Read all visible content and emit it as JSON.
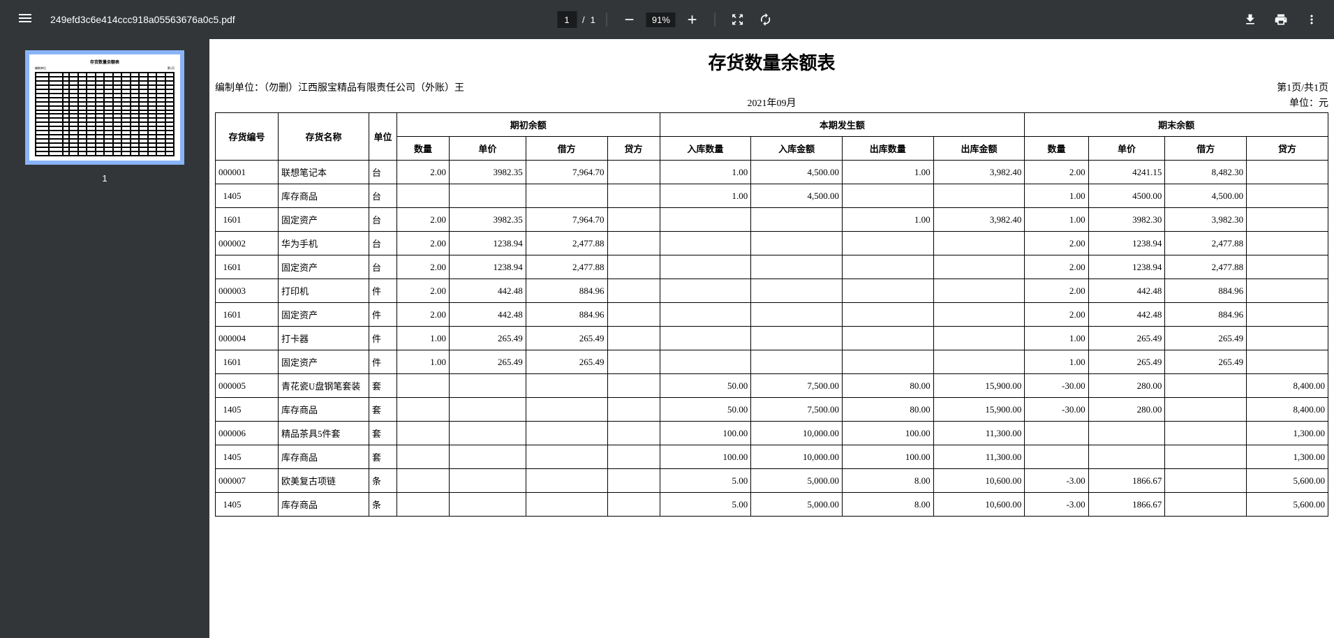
{
  "toolbar": {
    "filename": "249efd3c6e414ccc918a05563676a0c5.pdf",
    "currentPage": "1",
    "totalPages": "1",
    "pageSeparator": "/",
    "zoomLevel": "91%"
  },
  "sidebar": {
    "thumbLabel": "1"
  },
  "document": {
    "title": "存货数量余额表",
    "companyLabel": "编制单位：（勿删）江西服宝精品有限责任公司（外账）王",
    "pageInfo": "第1页/共1页",
    "dateText": "2021年09月",
    "unitLabel": "单位：元",
    "headers": {
      "col1": "存货编号",
      "col2": "存货名称",
      "col3": "单位",
      "group1": "期初余额",
      "group2": "本期发生额",
      "group3": "期末余额",
      "g1c1": "数量",
      "g1c2": "单价",
      "g1c3": "借方",
      "g1c4": "贷方",
      "g2c1": "入库数量",
      "g2c2": "入库金额",
      "g2c3": "出库数量",
      "g2c4": "出库金额",
      "g3c1": "数量",
      "g3c2": "单价",
      "g3c3": "借方",
      "g3c4": "贷方"
    },
    "rows": [
      {
        "code": "000001",
        "name": "联想笔记本",
        "unit": "台",
        "b_qty": "2.00",
        "b_price": "3982.35",
        "b_dr": "7,964.70",
        "b_cr": "",
        "in_qty": "1.00",
        "in_amt": "4,500.00",
        "out_qty": "1.00",
        "out_amt": "3,982.40",
        "e_qty": "2.00",
        "e_price": "4241.15",
        "e_dr": "8,482.30",
        "e_cr": ""
      },
      {
        "code": "  1405",
        "name": "库存商品",
        "unit": "台",
        "b_qty": "",
        "b_price": "",
        "b_dr": "",
        "b_cr": "",
        "in_qty": "1.00",
        "in_amt": "4,500.00",
        "out_qty": "",
        "out_amt": "",
        "e_qty": "1.00",
        "e_price": "4500.00",
        "e_dr": "4,500.00",
        "e_cr": ""
      },
      {
        "code": "  1601",
        "name": "固定资产",
        "unit": "台",
        "b_qty": "2.00",
        "b_price": "3982.35",
        "b_dr": "7,964.70",
        "b_cr": "",
        "in_qty": "",
        "in_amt": "",
        "out_qty": "1.00",
        "out_amt": "3,982.40",
        "e_qty": "1.00",
        "e_price": "3982.30",
        "e_dr": "3,982.30",
        "e_cr": ""
      },
      {
        "code": "000002",
        "name": "华为手机",
        "unit": "台",
        "b_qty": "2.00",
        "b_price": "1238.94",
        "b_dr": "2,477.88",
        "b_cr": "",
        "in_qty": "",
        "in_amt": "",
        "out_qty": "",
        "out_amt": "",
        "e_qty": "2.00",
        "e_price": "1238.94",
        "e_dr": "2,477.88",
        "e_cr": ""
      },
      {
        "code": "  1601",
        "name": "固定资产",
        "unit": "台",
        "b_qty": "2.00",
        "b_price": "1238.94",
        "b_dr": "2,477.88",
        "b_cr": "",
        "in_qty": "",
        "in_amt": "",
        "out_qty": "",
        "out_amt": "",
        "e_qty": "2.00",
        "e_price": "1238.94",
        "e_dr": "2,477.88",
        "e_cr": ""
      },
      {
        "code": "000003",
        "name": "打印机",
        "unit": "件",
        "b_qty": "2.00",
        "b_price": "442.48",
        "b_dr": "884.96",
        "b_cr": "",
        "in_qty": "",
        "in_amt": "",
        "out_qty": "",
        "out_amt": "",
        "e_qty": "2.00",
        "e_price": "442.48",
        "e_dr": "884.96",
        "e_cr": ""
      },
      {
        "code": "  1601",
        "name": "固定资产",
        "unit": "件",
        "b_qty": "2.00",
        "b_price": "442.48",
        "b_dr": "884.96",
        "b_cr": "",
        "in_qty": "",
        "in_amt": "",
        "out_qty": "",
        "out_amt": "",
        "e_qty": "2.00",
        "e_price": "442.48",
        "e_dr": "884.96",
        "e_cr": ""
      },
      {
        "code": "000004",
        "name": "打卡器",
        "unit": "件",
        "b_qty": "1.00",
        "b_price": "265.49",
        "b_dr": "265.49",
        "b_cr": "",
        "in_qty": "",
        "in_amt": "",
        "out_qty": "",
        "out_amt": "",
        "e_qty": "1.00",
        "e_price": "265.49",
        "e_dr": "265.49",
        "e_cr": ""
      },
      {
        "code": "  1601",
        "name": "固定资产",
        "unit": "件",
        "b_qty": "1.00",
        "b_price": "265.49",
        "b_dr": "265.49",
        "b_cr": "",
        "in_qty": "",
        "in_amt": "",
        "out_qty": "",
        "out_amt": "",
        "e_qty": "1.00",
        "e_price": "265.49",
        "e_dr": "265.49",
        "e_cr": ""
      },
      {
        "code": "000005",
        "name": "青花瓷U盘钢笔套装",
        "unit": "套",
        "b_qty": "",
        "b_price": "",
        "b_dr": "",
        "b_cr": "",
        "in_qty": "50.00",
        "in_amt": "7,500.00",
        "out_qty": "80.00",
        "out_amt": "15,900.00",
        "e_qty": "-30.00",
        "e_price": "280.00",
        "e_dr": "",
        "e_cr": "8,400.00"
      },
      {
        "code": "  1405",
        "name": "库存商品",
        "unit": "套",
        "b_qty": "",
        "b_price": "",
        "b_dr": "",
        "b_cr": "",
        "in_qty": "50.00",
        "in_amt": "7,500.00",
        "out_qty": "80.00",
        "out_amt": "15,900.00",
        "e_qty": "-30.00",
        "e_price": "280.00",
        "e_dr": "",
        "e_cr": "8,400.00"
      },
      {
        "code": "000006",
        "name": "精品茶具5件套",
        "unit": "套",
        "b_qty": "",
        "b_price": "",
        "b_dr": "",
        "b_cr": "",
        "in_qty": "100.00",
        "in_amt": "10,000.00",
        "out_qty": "100.00",
        "out_amt": "11,300.00",
        "e_qty": "",
        "e_price": "",
        "e_dr": "",
        "e_cr": "1,300.00"
      },
      {
        "code": "  1405",
        "name": "库存商品",
        "unit": "套",
        "b_qty": "",
        "b_price": "",
        "b_dr": "",
        "b_cr": "",
        "in_qty": "100.00",
        "in_amt": "10,000.00",
        "out_qty": "100.00",
        "out_amt": "11,300.00",
        "e_qty": "",
        "e_price": "",
        "e_dr": "",
        "e_cr": "1,300.00"
      },
      {
        "code": "000007",
        "name": "欧美复古项链",
        "unit": "条",
        "b_qty": "",
        "b_price": "",
        "b_dr": "",
        "b_cr": "",
        "in_qty": "5.00",
        "in_amt": "5,000.00",
        "out_qty": "8.00",
        "out_amt": "10,600.00",
        "e_qty": "-3.00",
        "e_price": "1866.67",
        "e_dr": "",
        "e_cr": "5,600.00"
      },
      {
        "code": "  1405",
        "name": "库存商品",
        "unit": "条",
        "b_qty": "",
        "b_price": "",
        "b_dr": "",
        "b_cr": "",
        "in_qty": "5.00",
        "in_amt": "5,000.00",
        "out_qty": "8.00",
        "out_amt": "10,600.00",
        "e_qty": "-3.00",
        "e_price": "1866.67",
        "e_dr": "",
        "e_cr": "5,600.00"
      }
    ],
    "colors": {
      "toolbar_bg": "#323639",
      "body_bg": "#525659",
      "input_bg": "#191b1c",
      "thumb_border": "#8ab4f8",
      "table_border": "#000000",
      "page_bg": "#ffffff"
    }
  }
}
